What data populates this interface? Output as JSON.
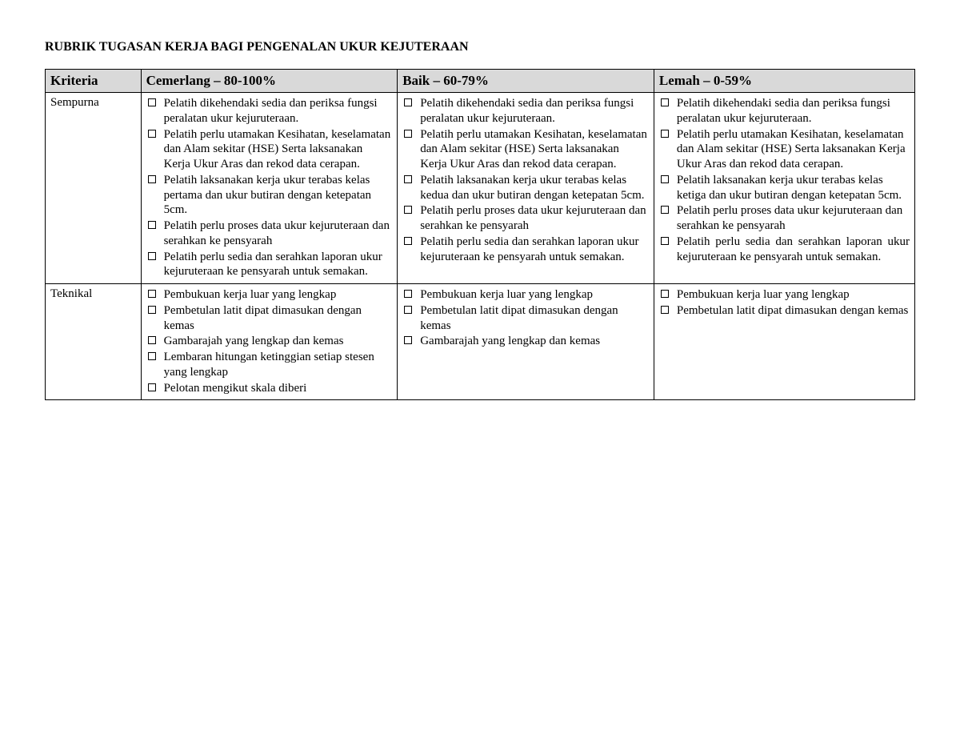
{
  "title": "RUBRIK TUGASAN KERJA BAGI PENGENALAN UKUR KEJUTERAAN",
  "headers": {
    "criteria": "Kriteria",
    "excellent": "Cemerlang – 80-100%",
    "good": "Baik – 60-79%",
    "weak": "Lemah – 0-59%"
  },
  "rows": [
    {
      "criteria": "Sempurna",
      "excellent": [
        "Pelatih dikehendaki sedia dan periksa fungsi peralatan ukur kejuruteraan.",
        "Pelatih perlu utamakan Kesihatan, keselamatan dan Alam sekitar (HSE) Serta laksanakan Kerja Ukur Aras dan rekod data cerapan.",
        "Pelatih laksanakan kerja ukur terabas kelas pertama dan ukur butiran dengan ketepatan 5cm.",
        "Pelatih perlu proses data ukur kejuruteraan dan serahkan ke pensyarah",
        "Pelatih perlu sedia dan serahkan laporan ukur kejuruteraan ke pensyarah untuk semakan."
      ],
      "good": [
        "Pelatih dikehendaki sedia dan periksa fungsi peralatan ukur kejuruteraan.",
        "Pelatih perlu utamakan Kesihatan, keselamatan dan Alam sekitar (HSE) Serta laksanakan Kerja Ukur Aras dan rekod data cerapan.",
        "Pelatih laksanakan kerja ukur terabas kelas kedua dan ukur butiran dengan ketepatan 5cm.",
        "Pelatih perlu proses data ukur kejuruteraan dan serahkan ke pensyarah",
        "Pelatih perlu sedia dan serahkan laporan ukur kejuruteraan ke pensyarah untuk semakan."
      ],
      "weak": [
        "Pelatih dikehendaki sedia dan periksa fungsi peralatan ukur kejuruteraan.",
        "Pelatih perlu utamakan Kesihatan, keselamatan dan Alam sekitar (HSE) Serta laksanakan Kerja Ukur Aras dan rekod data cerapan.",
        "Pelatih laksanakan kerja ukur terabas kelas ketiga dan ukur butiran dengan ketepatan 5cm.",
        "Pelatih perlu proses data ukur kejuruteraan dan serahkan ke pensyarah",
        "Pelatih perlu sedia dan serahkan laporan ukur kejuruteraan ke pensyarah untuk semakan."
      ],
      "weak_justify": [
        false,
        false,
        false,
        false,
        true
      ]
    },
    {
      "criteria": "Teknikal",
      "excellent": [
        "Pembukuan kerja luar yang lengkap",
        "Pembetulan latit dipat dimasukan dengan kemas",
        "Gambarajah yang lengkap dan kemas",
        "Lembaran hitungan ketinggian setiap stesen yang lengkap",
        "Pelotan mengikut skala diberi"
      ],
      "excellent_justify": [
        true,
        false,
        true,
        false,
        false
      ],
      "good": [
        "Pembukuan kerja luar yang lengkap",
        "Pembetulan latit dipat dimasukan dengan kemas",
        "Gambarajah yang lengkap dan kemas"
      ],
      "good_justify": [
        true,
        false,
        true
      ],
      "weak": [
        "Pembukuan kerja luar yang lengkap",
        "Pembetulan latit dipat dimasukan dengan kemas"
      ],
      "weak_justify": [
        false,
        true
      ]
    }
  ]
}
